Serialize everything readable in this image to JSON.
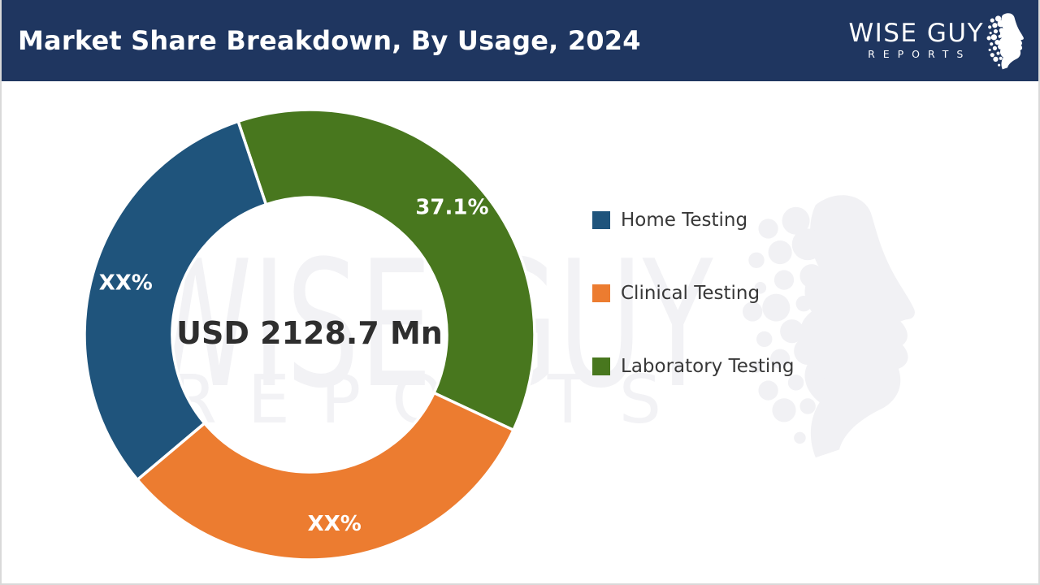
{
  "header": {
    "title": "Market Share Breakdown, By Usage, 2024",
    "bg_color": "#1F3660",
    "logo": {
      "line1": "WISE GUY",
      "line2": "REPORTS"
    }
  },
  "watermark": {
    "line1": "WISE GUY",
    "line2": "REPORTS"
  },
  "chart_data": {
    "type": "pie",
    "subtype": "donut",
    "title": "Market Share Breakdown, By Usage, 2024",
    "center_label": "USD 2128.7 Mn",
    "start_angle_deg": -18.5,
    "direction": "clockwise",
    "inner_radius_ratio": 0.61,
    "slice_gap_color": "#ffffff",
    "slices": [
      {
        "name": "Laboratory Testing",
        "label": "37.1%",
        "value": 37.1,
        "color": "#48771E"
      },
      {
        "name": "Clinical Testing",
        "label": "XX%",
        "value": 31.9,
        "color": "#EC7C30"
      },
      {
        "name": "Home Testing",
        "label": "XX%",
        "value": 31.0,
        "color": "#1F547C"
      }
    ],
    "legend_position": "right",
    "legend": [
      {
        "label": "Home Testing",
        "color": "#1F547C"
      },
      {
        "label": "Clinical Testing",
        "color": "#EC7C30"
      },
      {
        "label": "Laboratory Testing",
        "color": "#48771E"
      }
    ]
  }
}
